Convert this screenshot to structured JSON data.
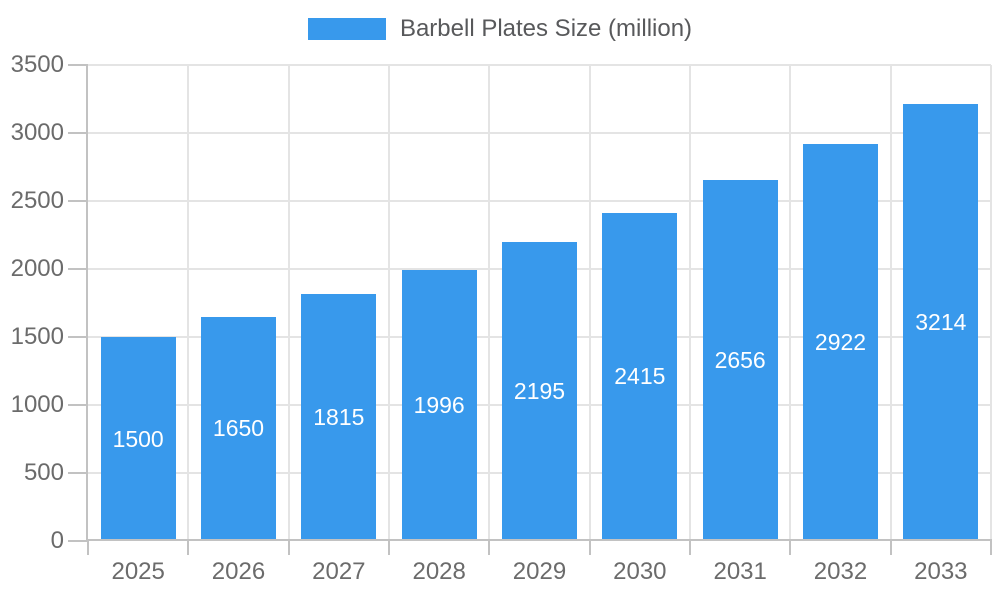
{
  "chart_data": {
    "type": "bar",
    "title": "Barbell Plates Size (million)",
    "legend": {
      "label": "Barbell Plates Size (million)",
      "position": "top"
    },
    "categories": [
      "2025",
      "2026",
      "2027",
      "2028",
      "2029",
      "2030",
      "2031",
      "2032",
      "2033"
    ],
    "series": [
      {
        "name": "Barbell Plates Size (million)",
        "values": [
          1500,
          1650,
          1815,
          1996,
          2195,
          2415,
          2656,
          2922,
          3214
        ]
      }
    ],
    "xlabel": "",
    "ylabel": "",
    "ylim": [
      0,
      3500
    ],
    "yticks": [
      0,
      500,
      1000,
      1500,
      2000,
      2500,
      3000,
      3500
    ],
    "grid": true,
    "value_labels": "inside-center",
    "colors": {
      "bar": "#3899EC",
      "value_label": "#FFFFFF",
      "axis_label": "#6B6B6B",
      "legend_text": "#58595B",
      "gridline": "#E4E4E4",
      "axis_line": "#C2C2C2",
      "background": "#FFFFFF"
    }
  }
}
